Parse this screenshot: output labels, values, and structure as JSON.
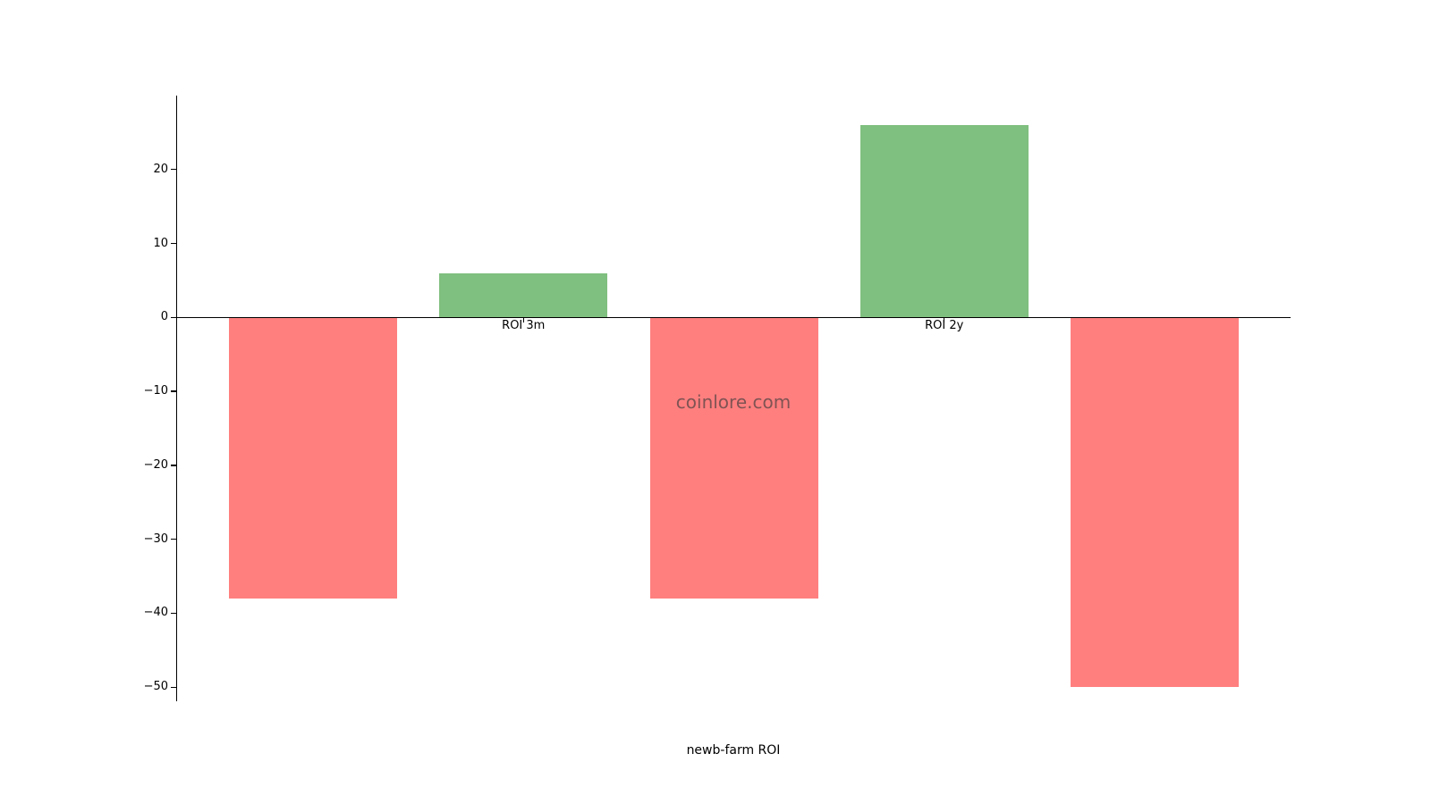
{
  "page": {
    "background_color": "#ffffff"
  },
  "watermark": {
    "text": "coinlore.com"
  },
  "chart_data": {
    "type": "bar",
    "title": "",
    "xlabel": "newb-farm ROI",
    "ylabel": "",
    "categories": [
      "",
      "ROI 3m",
      "",
      "ROI 2y",
      ""
    ],
    "values": [
      -38,
      6,
      -38,
      26,
      -50
    ],
    "bar_colors": [
      "#ff7f7f",
      "#7fbf7f",
      "#ff7f7f",
      "#7fbf7f",
      "#ff7f7f"
    ],
    "positive_color": "#7fbf7f",
    "negative_color": "#ff7f7f",
    "axis_color": "#000000",
    "y_ticks": [
      20,
      10,
      0,
      -10,
      -20,
      -30,
      -40,
      -50
    ],
    "ylim": [
      -51.9,
      30
    ],
    "grid": false,
    "legend": null,
    "x_tick_labels_visible": [
      "ROI 3m",
      "ROI 2y"
    ],
    "visible_x_tick_indices": [
      1,
      3
    ]
  }
}
